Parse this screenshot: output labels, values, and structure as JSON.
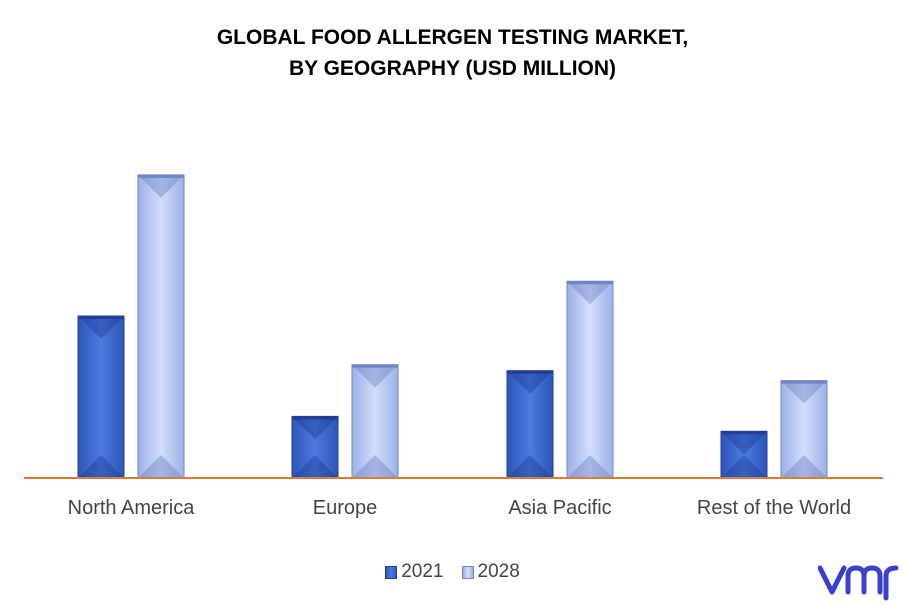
{
  "chart_data": {
    "type": "bar",
    "title": "GLOBAL FOOD ALLERGEN TESTING MARKET,",
    "subtitle": "BY GEOGRAPHY (USD MILLION)",
    "categories": [
      "North America",
      "Europe",
      "Asia Pacific",
      "Rest of the World"
    ],
    "series": [
      {
        "name": "2021",
        "values": [
          163,
          62,
          108,
          47
        ]
      },
      {
        "name": "2028",
        "values": [
          305,
          114,
          198,
          98
        ]
      }
    ],
    "ylim": [
      0,
      320
    ],
    "xlabel": "",
    "ylabel": "",
    "grid": false,
    "legend_position": "bottom-center",
    "colors": {
      "series_2021_fill": "#4270D6",
      "series_2021_dark": "#1F3F9A",
      "series_2028_fill": "#B6C7F2",
      "series_2028_dark": "#6F86C6",
      "baseline": "#E07A32",
      "tick_label": "#444444"
    }
  },
  "logo": {
    "text": "vmr",
    "color": "#3B3FD0"
  }
}
